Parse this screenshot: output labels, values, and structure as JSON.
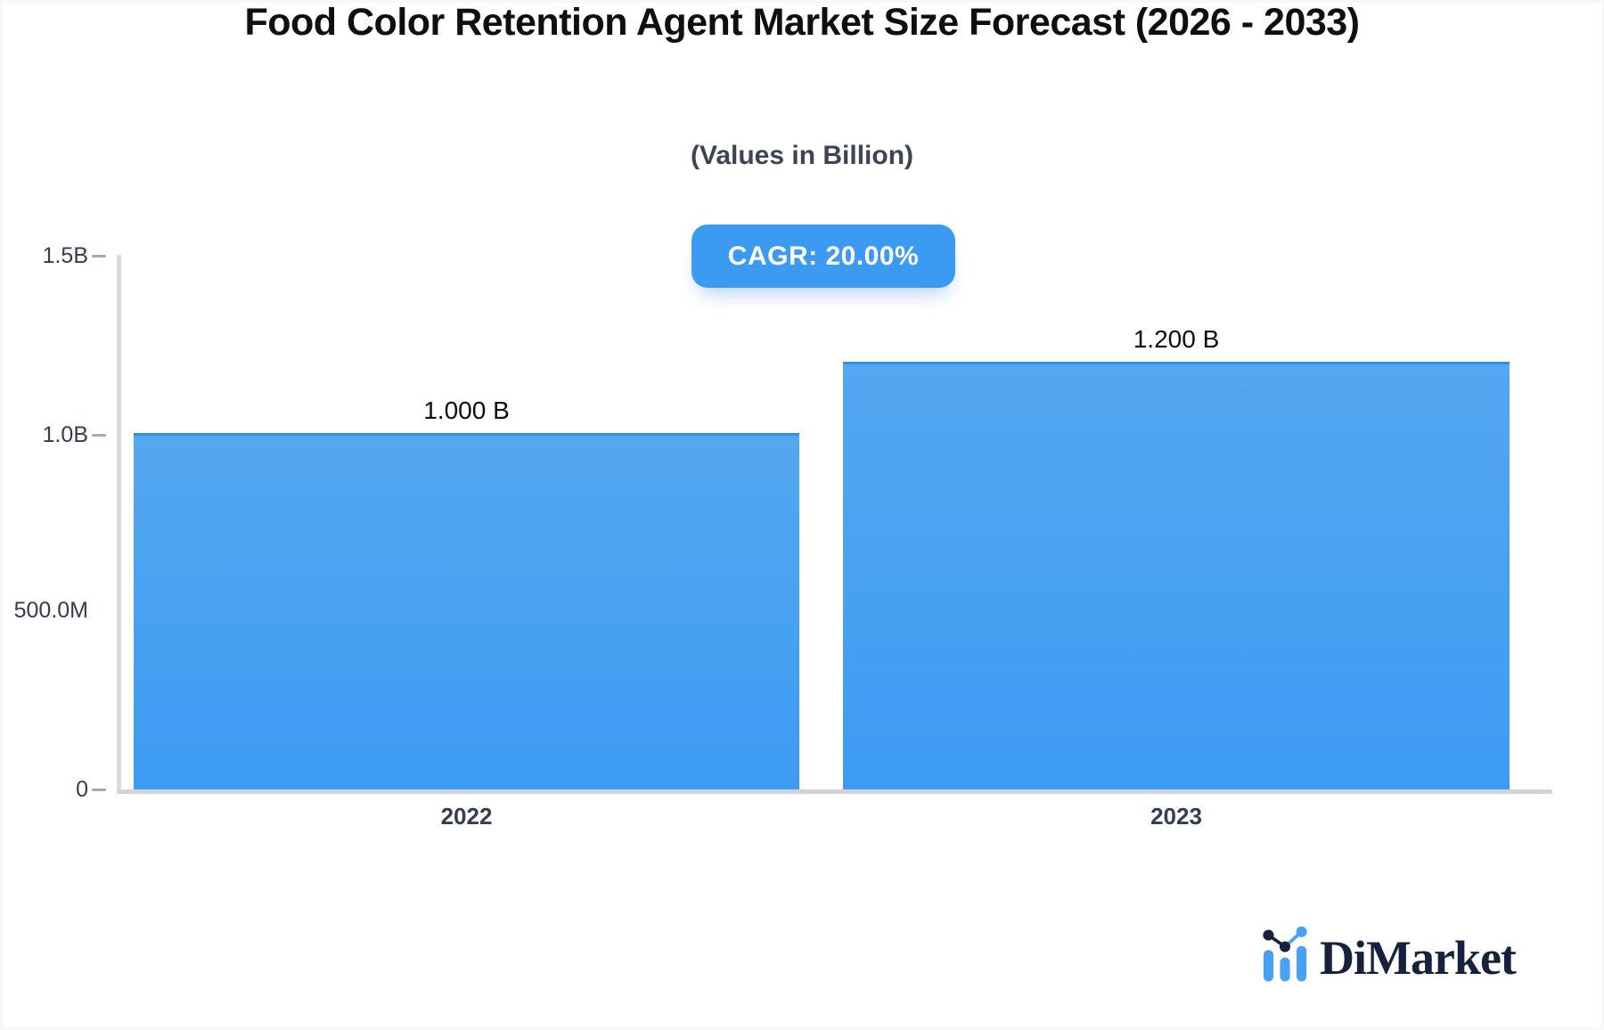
{
  "chart_data": {
    "type": "bar",
    "title": "Food Color Retention Agent Market Size Forecast (2026 - 2033)",
    "subtitle": "(Values in Billion)",
    "badge_label": "CAGR: 20.00%",
    "cagr_percent": "20.00%",
    "categories": [
      "2022",
      "2023"
    ],
    "values": [
      1.0,
      1.2
    ],
    "value_labels": [
      "1.000 B",
      "1.200 B"
    ],
    "unit": "Billion",
    "ylim": [
      0,
      1.5
    ],
    "y_ticks": [
      {
        "label": "1.5B",
        "value": 1.5
      },
      {
        "label": "1.0B",
        "value": 1.0
      },
      {
        "label": "500.0M",
        "value": 0.5
      },
      {
        "label": "0",
        "value": 0
      }
    ],
    "grid": false,
    "legend": "none"
  },
  "branding": {
    "logo_text": "DiMarket",
    "logo_icon": "bar-line-chart-icon"
  },
  "colors": {
    "badge_bg": "#3b9bf2",
    "badge_text": "#ffffff",
    "bar_gradient_top": "#54a7f0",
    "bar_gradient_bottom": "#3d9bf3",
    "bar_top_edge": "#2e90e9",
    "axis_line": "#d3d7dd",
    "tick": "#a3a9b3",
    "title_text": "#0d0f13",
    "label_text": "#333d4f",
    "logo_navy": "#16213d",
    "logo_blue": "#4aa0f5"
  }
}
